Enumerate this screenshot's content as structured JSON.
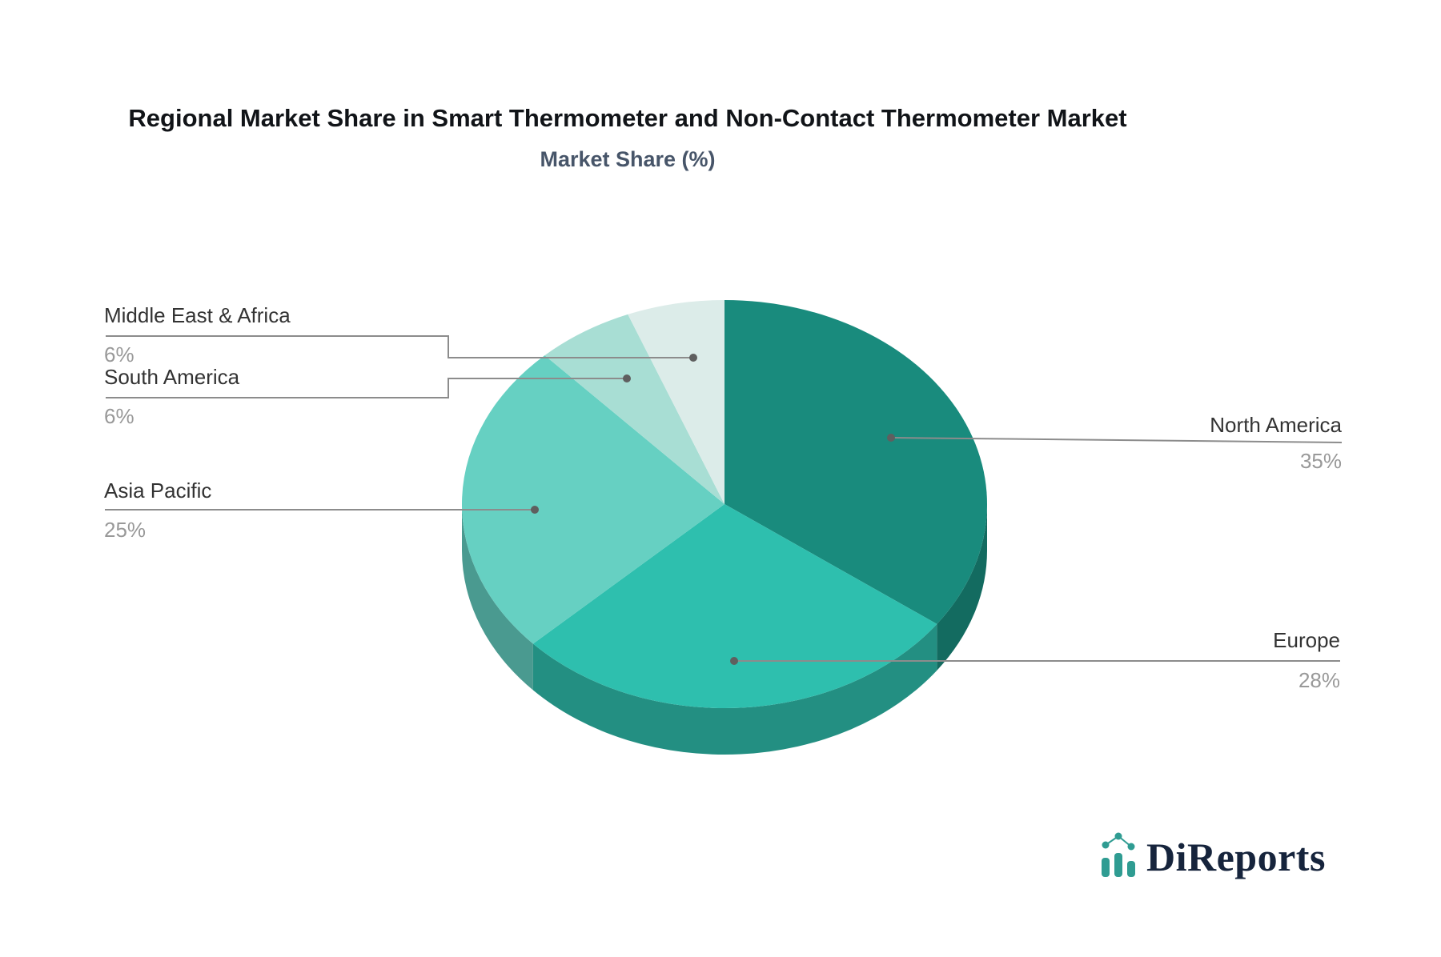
{
  "title": "Regional Market Share in Smart Thermometer and Non-Contact Thermometer Market",
  "subtitle": "Market Share (%)",
  "logo": {
    "text": "DiReports",
    "icon": "bar-line-chart-icon",
    "icon_color": "#2f9c92",
    "text_color": "#16243c"
  },
  "chart_data": {
    "type": "pie",
    "style": "3d",
    "title": "Regional Market Share in Smart Thermometer and Non-Contact Thermometer Market",
    "subtitle": "Market Share (%)",
    "labels": [
      "North America",
      "Europe",
      "Asia Pacific",
      "South America",
      "Middle East & Africa"
    ],
    "values": [
      35,
      28,
      25,
      6,
      6
    ],
    "value_labels": [
      "35%",
      "28%",
      "25%",
      "6%",
      "6%"
    ],
    "colors": [
      "#198b7d",
      "#2ebfae",
      "#66d0c2",
      "#a8ded4",
      "#dcece9"
    ],
    "side_colors": [
      "#136b60",
      "#238f82",
      "#4a9a90",
      "#8cc6bb",
      "#b9d8d2"
    ],
    "start_angle_deg": 0,
    "direction": "clockwise",
    "legend_position": "callouts",
    "leader_line_color": "#8c8c8c",
    "leader_dot_color": "#5f5f5f",
    "label_color": "#333333",
    "value_color": "#999999"
  }
}
